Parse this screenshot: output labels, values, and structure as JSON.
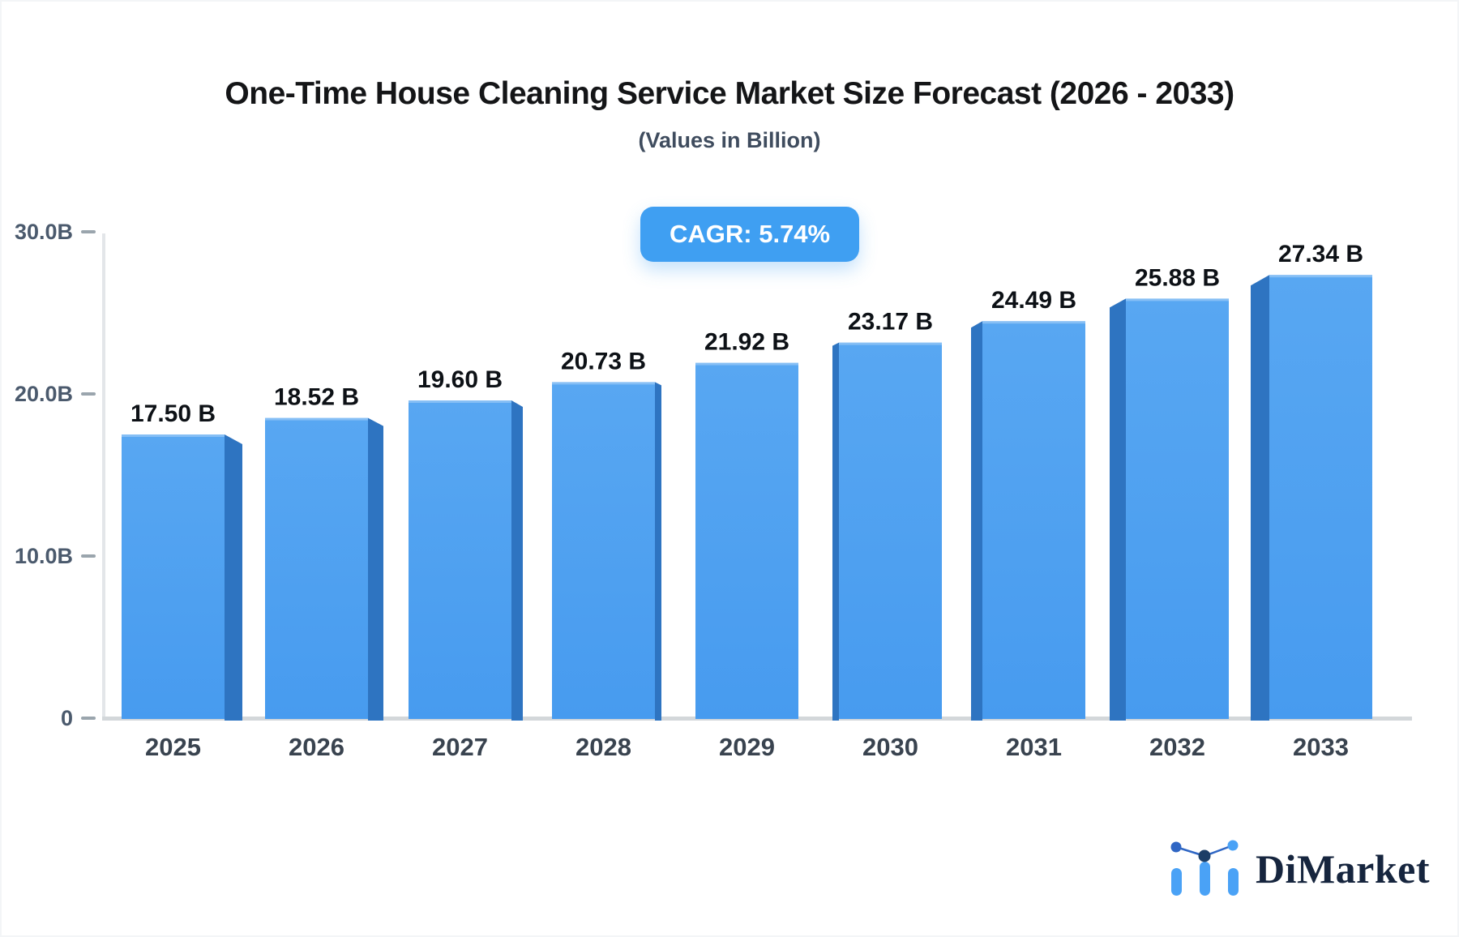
{
  "header": {
    "title": "One-Time House Cleaning Service Market Size Forecast (2026 - 2033)",
    "subtitle": "(Values in Billion)",
    "cagr_badge": "CAGR: 5.74%"
  },
  "chart_data": {
    "type": "bar",
    "title": "One-Time House Cleaning Service Market Size Forecast (2026 - 2033)",
    "subtitle": "(Values in Billion)",
    "categories": [
      "2025",
      "2026",
      "2027",
      "2028",
      "2029",
      "2030",
      "2031",
      "2032",
      "2033"
    ],
    "values": [
      17.5,
      18.52,
      19.6,
      20.73,
      21.92,
      23.17,
      24.49,
      25.88,
      27.34
    ],
    "value_labels": [
      "17.50 B",
      "18.52 B",
      "19.60 B",
      "20.73 B",
      "21.92 B",
      "23.17 B",
      "24.49 B",
      "25.88 B",
      "27.34 B"
    ],
    "unit": "Billion",
    "xlabel": "",
    "ylabel": "",
    "ylim": [
      0,
      30
    ],
    "yticks": [
      {
        "value": 0,
        "label": "0"
      },
      {
        "value": 10,
        "label": "10.0B"
      },
      {
        "value": 20,
        "label": "20.0B"
      },
      {
        "value": 30,
        "label": "30.0B"
      }
    ],
    "grid": "off",
    "legend": "none",
    "annotation": "CAGR: 5.74%",
    "style": "3d-perspective-bars",
    "colors": {
      "bar_front_top": "#58a7f2",
      "bar_front_bottom": "#479bef",
      "bar_side": "#2e74c1",
      "badge_bg": "#3f9ff2",
      "axis_line": "#e3e6e9",
      "baseline": "#d3d7da",
      "tick_dash": "#9aa5ad",
      "y_label": "#4b5a6d",
      "x_label": "#39434f",
      "value_label": "#0d1116"
    }
  },
  "branding": {
    "logo_text": "DiMarket",
    "logo_icon": "bar-chart-with-trendline-icon",
    "colors": {
      "logo_text": "#16253e",
      "logo_bar": "#4aa2f6",
      "logo_line": "#2f66c4",
      "logo_dot_mid": "#1c3e66"
    }
  }
}
